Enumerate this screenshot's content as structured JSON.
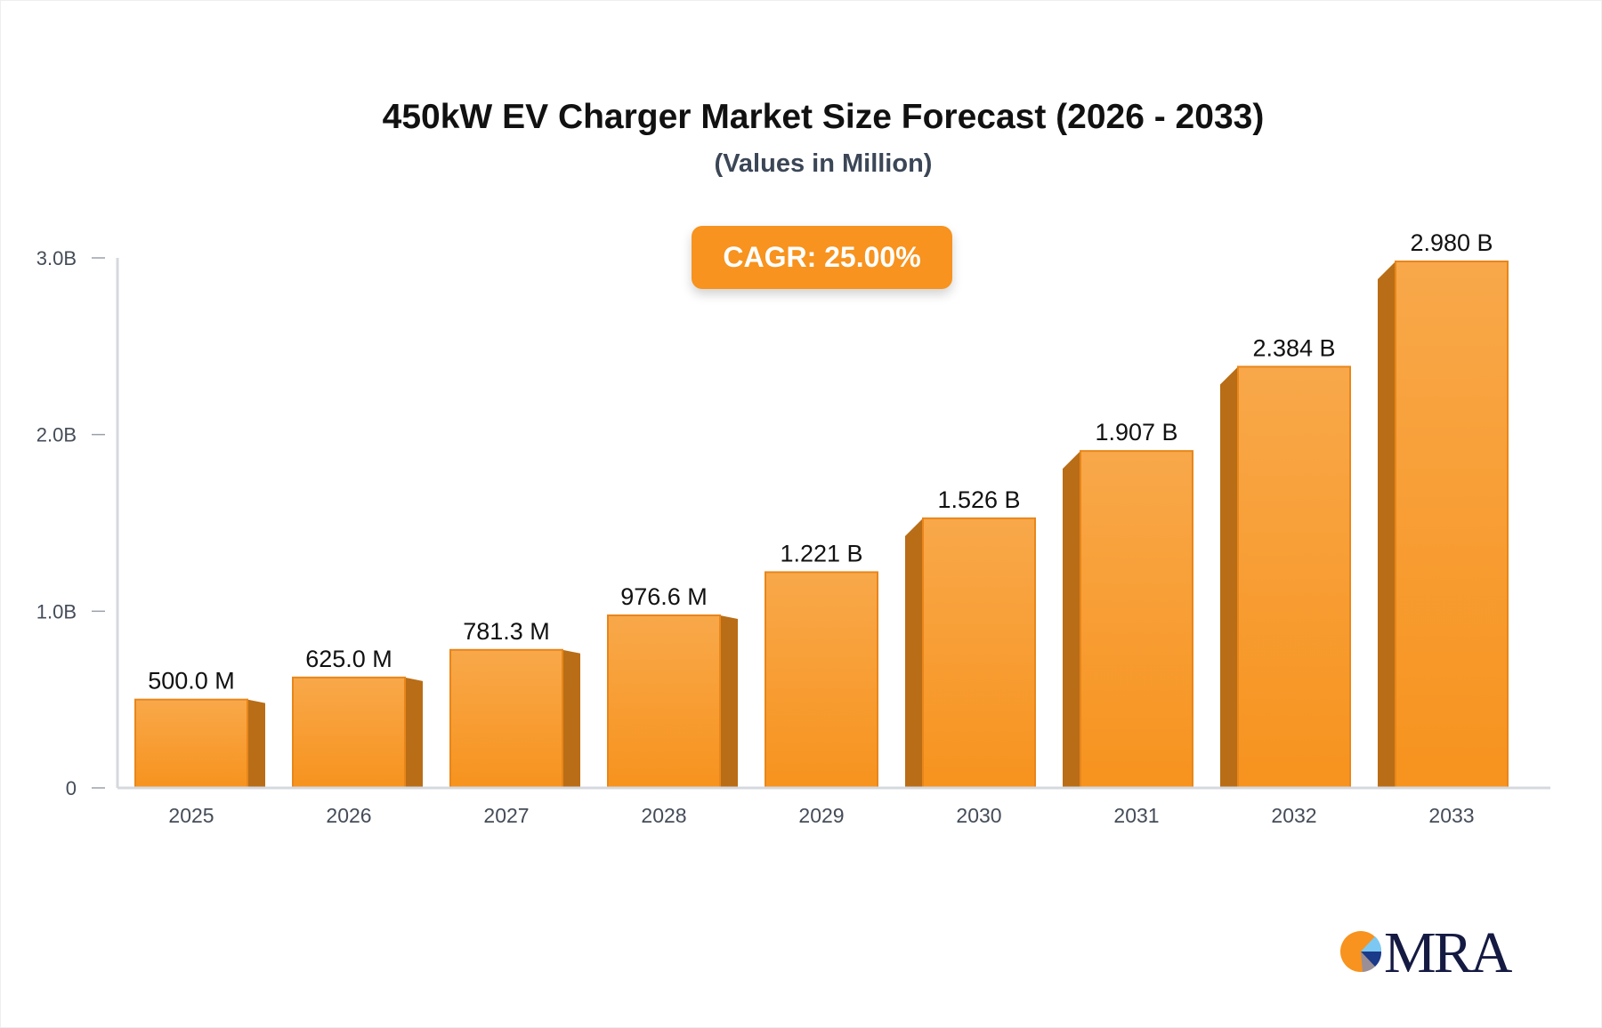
{
  "chart_data": {
    "type": "bar",
    "title": "450kW EV Charger Market Size Forecast (2026 - 2033)",
    "subtitle": "(Values in Million)",
    "annotation": "CAGR: 25.00%",
    "categories": [
      "2025",
      "2026",
      "2027",
      "2028",
      "2029",
      "2030",
      "2031",
      "2032",
      "2033"
    ],
    "values": [
      500.0,
      625.0,
      781.3,
      976.6,
      1221,
      1526,
      1907,
      2384,
      2980
    ],
    "data_labels": [
      "500.0 M",
      "625.0 M",
      "781.3 M",
      "976.6 M",
      "1.221 B",
      "1.526 B",
      "1.907 B",
      "2.384 B",
      "2.980 B"
    ],
    "ylim": [
      0,
      3000
    ],
    "yticks": [
      0,
      1000,
      2000,
      3000
    ],
    "ytick_labels": [
      "0",
      "1.0B",
      "2.0B",
      "3.0B"
    ],
    "xlabel": "",
    "ylabel": "",
    "grid": false,
    "colors": {
      "bar_top": "#f8a84a",
      "bar_bottom": "#f7931e",
      "bar_side": "#b96d16",
      "accent": "#f7931e"
    }
  },
  "logo": {
    "text": "MRA"
  }
}
